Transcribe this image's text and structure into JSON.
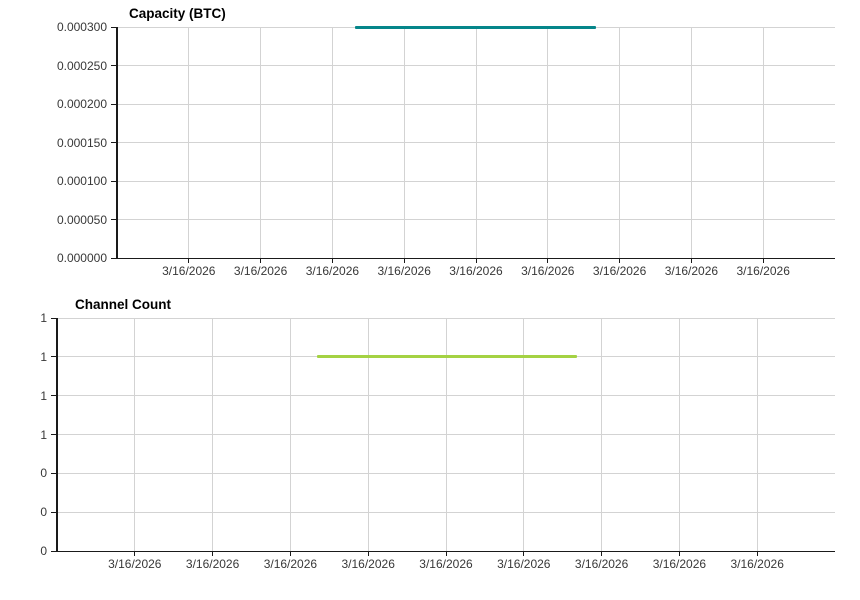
{
  "style": {
    "background": "#ffffff",
    "grid_color": "#d3d3d3",
    "axis_color": "#1a1a1a",
    "tick_text_color": "#383838",
    "title_text_color": "#000000",
    "capacity_line_color": "#05868a",
    "channel_line_color": "#a4d243"
  },
  "chart_data": [
    {
      "type": "line",
      "title": "Capacity (BTC)",
      "xlabel": "",
      "ylabel": "",
      "ylim": [
        0,
        0.0003
      ],
      "grid": true,
      "legend": "none",
      "y_tick_labels": [
        "0.000300",
        "0.000250",
        "0.000200",
        "0.000150",
        "0.000100",
        "0.000050",
        "0.000000"
      ],
      "x_tick_labels": [
        "3/16/2026",
        "3/16/2026",
        "3/16/2026",
        "3/16/2026",
        "3/16/2026",
        "3/16/2026",
        "3/16/2026",
        "3/16/2026",
        "3/16/2026"
      ],
      "series": [
        {
          "name": "Capacity (BTC)",
          "color": "#05868a",
          "y_value": 0.0003,
          "y_frac_from_top": 0.0,
          "x_span_frac": [
            0.332,
            0.667
          ],
          "note": "flat line at 0.000300 spanning the middle third of the date axis"
        }
      ]
    },
    {
      "type": "line",
      "title": "Channel Count",
      "xlabel": "",
      "ylabel": "",
      "ylim": [
        0,
        1.2
      ],
      "grid": true,
      "legend": "none",
      "y_tick_labels": [
        "1",
        "1",
        "1",
        "1",
        "0",
        "0",
        "0"
      ],
      "x_tick_labels": [
        "3/16/2026",
        "3/16/2026",
        "3/16/2026",
        "3/16/2026",
        "3/16/2026",
        "3/16/2026",
        "3/16/2026",
        "3/16/2026",
        "3/16/2026"
      ],
      "series": [
        {
          "name": "Channel Count",
          "color": "#a4d243",
          "y_value": 1,
          "y_frac_from_top": 0.1667,
          "x_span_frac": [
            0.334,
            0.668
          ],
          "note": "flat line at 1 spanning the middle third of the date axis"
        }
      ]
    }
  ]
}
